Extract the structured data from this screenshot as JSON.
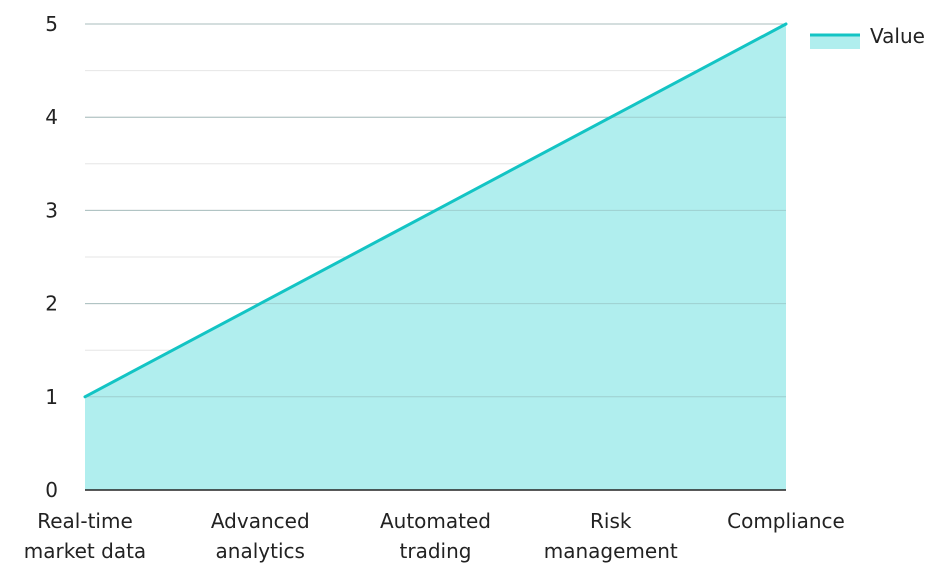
{
  "chart_data": {
    "type": "area",
    "categories": [
      [
        "Real-time",
        "market data"
      ],
      [
        "Advanced",
        "analytics"
      ],
      [
        "Automated",
        "trading"
      ],
      [
        "Risk",
        "management"
      ],
      [
        "Compliance"
      ]
    ],
    "series": [
      {
        "name": "Value",
        "values": [
          1,
          2,
          3,
          4,
          5
        ],
        "color": "#13c4c4",
        "fill": "#b0eeee"
      }
    ],
    "ylim": [
      0,
      5
    ],
    "yticks": [
      0,
      1,
      2,
      3,
      4,
      5
    ],
    "grid": true,
    "legend": "top-right",
    "title": "",
    "xlabel": "",
    "ylabel": ""
  }
}
